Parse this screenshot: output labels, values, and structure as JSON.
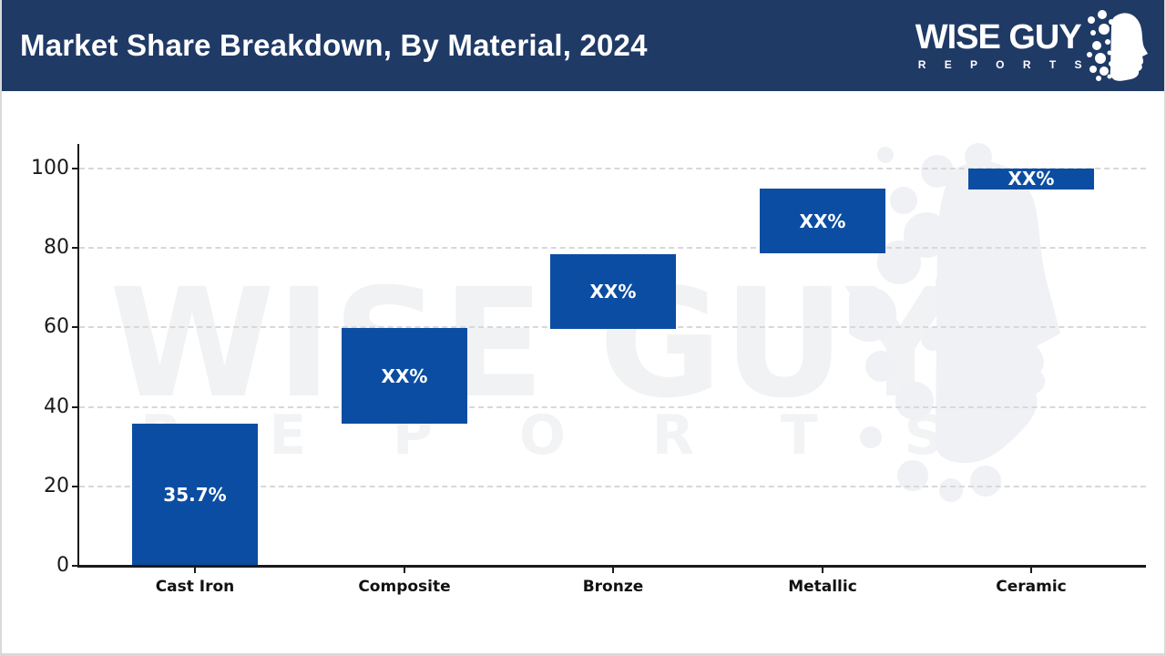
{
  "header": {
    "title": "Market Share Breakdown, By Material, 2024",
    "logo": {
      "primary": "WISE GUY",
      "secondary": "R E P O R T S",
      "face_icon": "dotted-face-profile"
    }
  },
  "watermark": {
    "primary": "WISE GUY",
    "secondary": "R E P O R T S",
    "face_icon": "dotted-face-profile"
  },
  "colors": {
    "header_bg": "#203a66",
    "bar": "#0b4da2",
    "grid": "#d8d8d8",
    "axis": "#1a1a1a",
    "bar_label_text": "#ffffff",
    "watermark": "#f1f2f4"
  },
  "chart_data": {
    "type": "bar",
    "subtype": "waterfall-step",
    "title": "Market Share Breakdown, By Material, 2024",
    "categories": [
      "Cast Iron",
      "Composite",
      "Bronze",
      "Metallic",
      "Ceramic"
    ],
    "segments": [
      {
        "category": "Cast Iron",
        "start": 0,
        "end": 35.7,
        "label": "35.7%"
      },
      {
        "category": "Composite",
        "start": 35.7,
        "end": 59.8,
        "label": "XX%"
      },
      {
        "category": "Bronze",
        "start": 59.6,
        "end": 78.4,
        "label": "XX%"
      },
      {
        "category": "Metallic",
        "start": 78.7,
        "end": 94.9,
        "label": "XX%"
      },
      {
        "category": "Ceramic",
        "start": 94.8,
        "end": 100,
        "label": "XX%"
      }
    ],
    "xlabel": "",
    "ylabel": "",
    "ylim": [
      0,
      105.7
    ],
    "yticks": [
      0,
      20,
      40,
      60,
      80,
      100
    ],
    "grid": "horizontal-dashed",
    "legend": null
  }
}
